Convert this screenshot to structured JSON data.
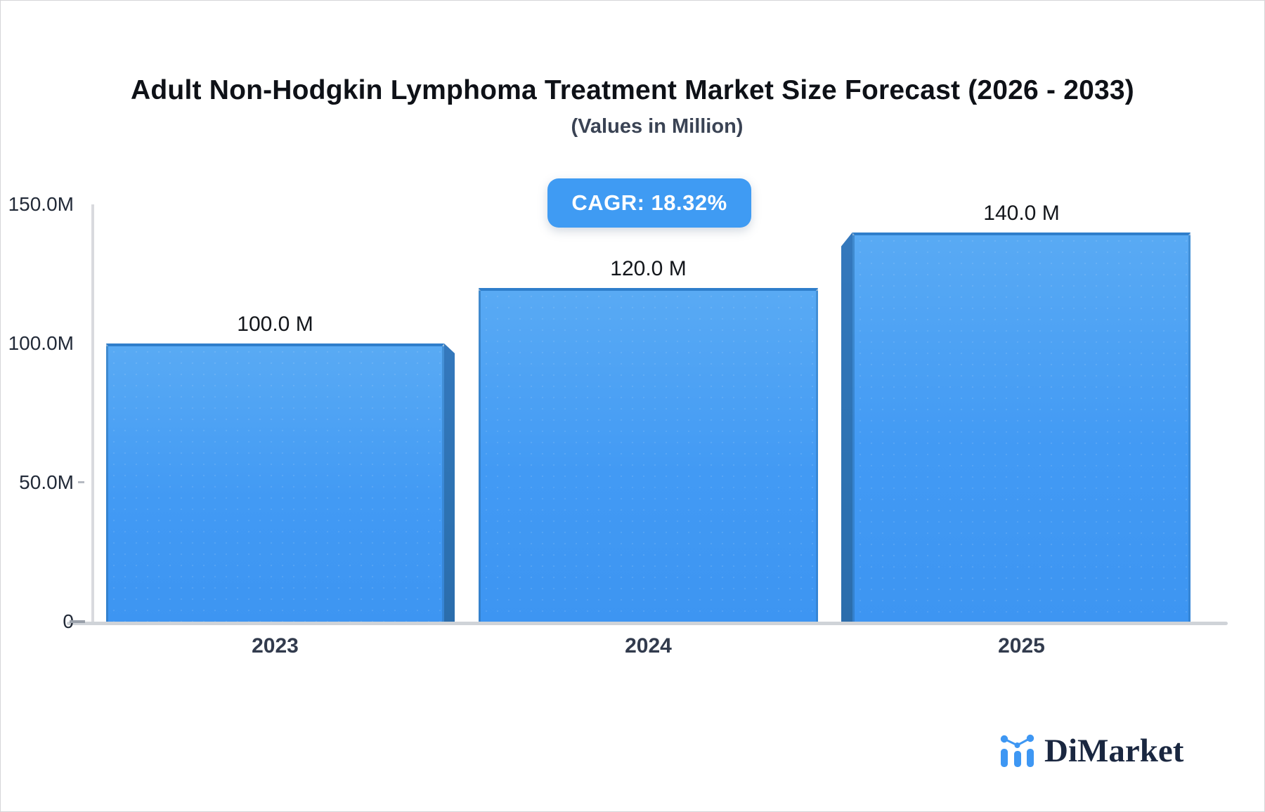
{
  "title": "Adult Non-Hodgkin Lymphoma Treatment Market Size Forecast (2026 - 2033)",
  "subtitle": "(Values in Million)",
  "badge": {
    "label": "CAGR: 18.32%"
  },
  "logo": {
    "text": "DiMarket",
    "icon": "mini-bar-chart-with-trend-dots"
  },
  "colors": {
    "bar_top": "#59aaf4",
    "bar_bottom": "#3d95f2",
    "bar_border": "#2f7ecb",
    "bar_side": "#2d72b2",
    "badge_bg": "#3f9bf3",
    "axis_line": "#d9dade",
    "baseline": "#cfd3d8",
    "logo_blue": "#3e97f3",
    "logo_navy": "#1a2740"
  },
  "chart_data": {
    "type": "bar",
    "title": "Adult Non-Hodgkin Lymphoma Treatment Market Size Forecast (2026 - 2033)",
    "subtitle": "(Values in Million)",
    "unit": "Million",
    "cagr": "18.32%",
    "categories": [
      "2023",
      "2024",
      "2025"
    ],
    "values": [
      100.0,
      120.0,
      140.0
    ],
    "value_labels": [
      "100.0 M",
      "120.0 M",
      "140.0 M"
    ],
    "ylim": [
      0,
      150
    ],
    "yticks": [
      {
        "label": "150.0M",
        "value": 150,
        "tick": "none"
      },
      {
        "label": "100.0M",
        "value": 100,
        "tick": "none"
      },
      {
        "label": "50.0M",
        "value": 50,
        "tick": "short"
      },
      {
        "label": "0",
        "value": 0,
        "tick": "long"
      }
    ],
    "grid": false,
    "legend": false,
    "bar_color": "#3e96f3",
    "effect": "3d-side-extrusion"
  }
}
